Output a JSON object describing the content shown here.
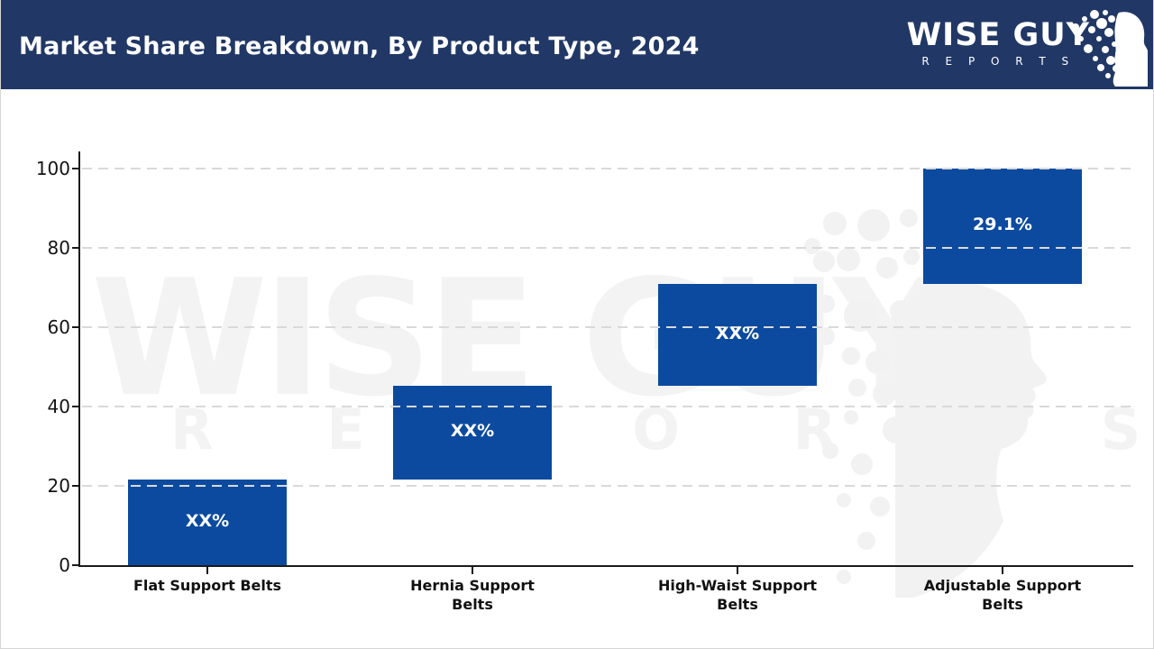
{
  "header": {
    "title": "Market Share Breakdown, By Product Type, 2024",
    "bg_color": "#213866",
    "brand": {
      "name": "WISE GUY",
      "tagline": "R E P O R T S"
    }
  },
  "watermark": {
    "line1": "WISE GUY",
    "line2": "R E P O R T S"
  },
  "chart_data": {
    "type": "bar",
    "subtype": "waterfall-stacked",
    "title": "Market Share Breakdown, By Product Type, 2024",
    "xlabel": "",
    "ylabel": "",
    "categories": [
      "Flat Support Belts",
      "Hernia Support Belts",
      "High-Waist Support Belts",
      "Adjustable Support Belts"
    ],
    "category_lines": [
      [
        "Flat Support Belts"
      ],
      [
        "Hernia Support",
        "Belts"
      ],
      [
        "High-Waist Support",
        "Belts"
      ],
      [
        "Adjustable Support",
        "Belts"
      ]
    ],
    "segments": [
      {
        "category": "Flat Support Belts",
        "start": 0,
        "end": 21.5,
        "label": "XX%"
      },
      {
        "category": "Hernia Support Belts",
        "start": 21.5,
        "end": 45.2,
        "label": "XX%"
      },
      {
        "category": "High-Waist Support Belts",
        "start": 45.2,
        "end": 70.9,
        "label": "XX%"
      },
      {
        "category": "Adjustable Support Belts",
        "start": 70.9,
        "end": 100,
        "label": "29.1%"
      }
    ],
    "yticks": [
      0,
      20,
      40,
      60,
      80,
      100
    ],
    "ylim": [
      0,
      105
    ],
    "bar_color": "#0b4a9f",
    "grid": "horizontal-dashed",
    "legend": "none"
  }
}
